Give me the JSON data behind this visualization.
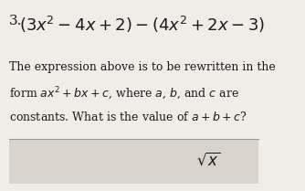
{
  "background_color": "#f0ede8",
  "number_label": "3.",
  "body_line1": "The expression above is to be rewritten in the",
  "body_line2": "form $ax^2 + bx + c$, where $a$, $b$, and $c$ are",
  "body_line3": "constants. What is the value of $a + b + c$?",
  "answer_math": "$\\sqrt{x}$",
  "answer_box_color": "#d8d4cc",
  "line_color": "#999990",
  "text_color": "#1a1a1a",
  "font_size_title": 13,
  "font_size_body": 9,
  "font_size_number": 11
}
